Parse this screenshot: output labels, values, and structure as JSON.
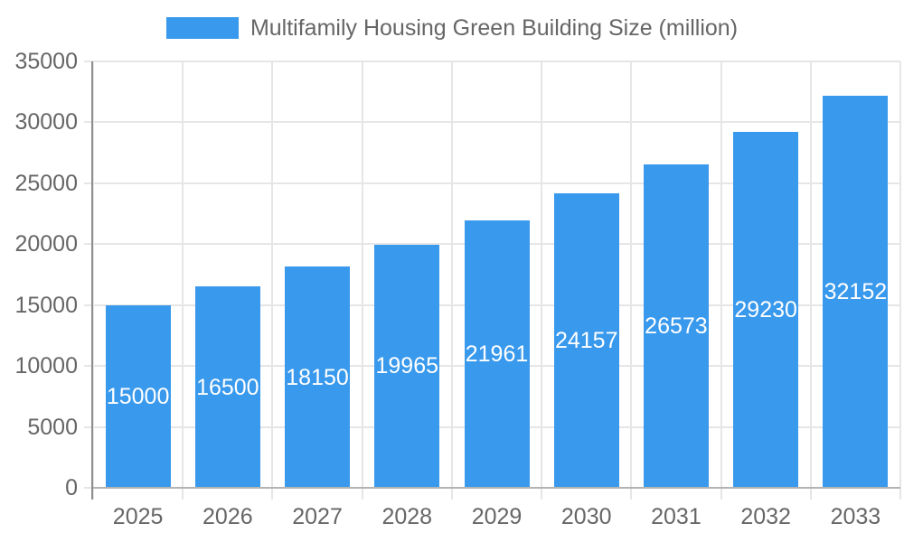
{
  "legend": {
    "label": "Multifamily Housing Green Building Size (million)"
  },
  "chart_data": {
    "type": "bar",
    "title": "Multifamily Housing Green Building Size (million)",
    "categories": [
      "2025",
      "2026",
      "2027",
      "2028",
      "2029",
      "2030",
      "2031",
      "2032",
      "2033"
    ],
    "values": [
      15000,
      16500,
      18150,
      19965,
      21961,
      24157,
      26573,
      29230,
      32152
    ],
    "series": [
      {
        "name": "Multifamily Housing Green Building Size (million)",
        "values": [
          15000,
          16500,
          18150,
          19965,
          21961,
          24157,
          26573,
          29230,
          32152
        ]
      }
    ],
    "xlabel": "",
    "ylabel": "",
    "ylim": [
      0,
      35000
    ],
    "yticks": [
      0,
      5000,
      10000,
      15000,
      20000,
      25000,
      30000,
      35000
    ],
    "grid": true,
    "legend_position": "top",
    "value_labels": "inside-center-white",
    "colors": {
      "bar": "#3999ec",
      "tick_text": "#666666",
      "gridline": "#e6e6e6",
      "y_axis_line": "#8f8f8f",
      "x_axis_line": "#b3b3b3",
      "value_text": "#ffffff",
      "background": "#ffffff"
    }
  }
}
